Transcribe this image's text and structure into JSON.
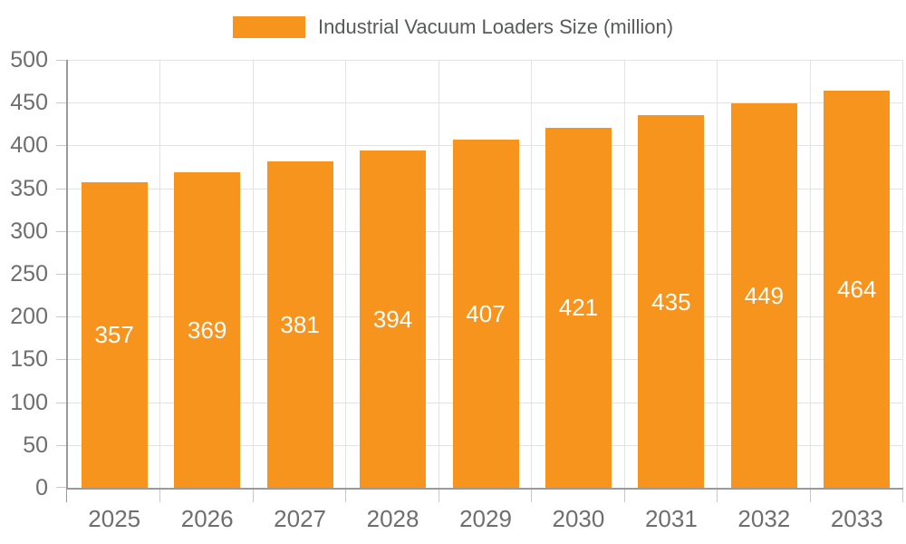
{
  "chart_data": {
    "type": "bar",
    "title": "",
    "legend_entries": [
      "Industrial Vacuum Loaders Size (million)"
    ],
    "legend_position": "top-center",
    "categories": [
      "2025",
      "2026",
      "2027",
      "2028",
      "2029",
      "2030",
      "2031",
      "2032",
      "2033"
    ],
    "values": [
      357,
      369,
      381,
      394,
      407,
      421,
      435,
      449,
      464
    ],
    "xlabel": "",
    "ylabel": "",
    "ylim": [
      0,
      500
    ],
    "ytick_step": 50,
    "yticks": [
      0,
      50,
      100,
      150,
      200,
      250,
      300,
      350,
      400,
      450,
      500
    ],
    "grid": true,
    "bar_labels_visible": true,
    "bar_label_position": "middle",
    "colors": {
      "bar": "#F7941E",
      "bar_label": "#FFFFFF",
      "axis_line": "#9A9A9A",
      "tick_mark": "#C8C8C8",
      "tick_label": "#6E6E6E",
      "grid_line": "#E3E3E3",
      "legend_text": "#58595B"
    }
  },
  "legend": {
    "label": "Industrial Vacuum Loaders Size (million)"
  }
}
